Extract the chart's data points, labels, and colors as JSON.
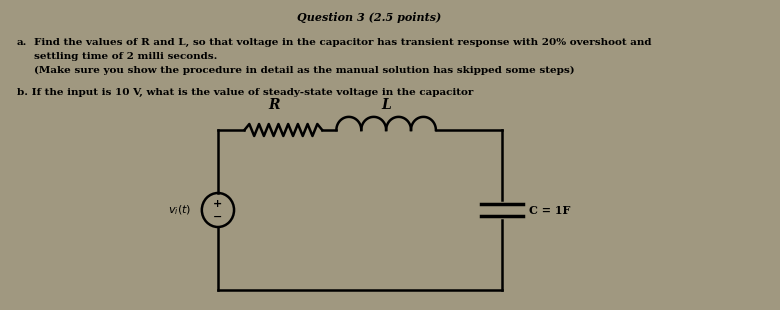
{
  "title": "Question 3 (2.5 points)",
  "part_a_label": "a.",
  "part_a_line1": "Find the values of R and L, so that voltage in the capacitor has transient response with 20% overshoot and",
  "part_a_line2": "settling time of 2 milli seconds.",
  "part_a_line3": "(Make sure you show the procedure in detail as the manual solution has skipped some steps)",
  "part_b": "b. If the input is 10 V, what is the value of steady-state voltage in the capacitor",
  "label_R": "R",
  "label_L": "L",
  "label_C": "C = 1F",
  "background_color": "#a09880",
  "text_color": "#000000",
  "circuit_color": "#000000",
  "title_fontsize": 8,
  "body_fontsize": 7.5
}
